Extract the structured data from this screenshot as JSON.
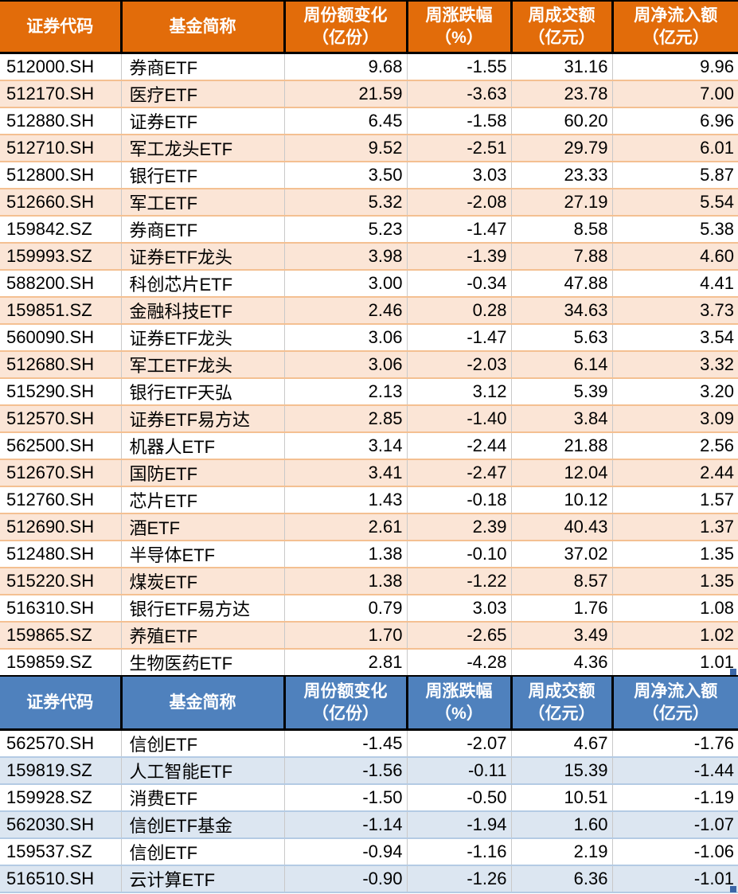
{
  "colors": {
    "inflow_header_bg": "#E26C0A",
    "inflow_stripe_bg": "#FBE5D6",
    "inflow_gridline": "#F4C092",
    "outflow_header_bg": "#4F81BD",
    "outflow_stripe_bg": "#DCE6F1",
    "outflow_gridline": "#B4CBE4",
    "cell_divider": "#C9C9C9",
    "selection_handle": "#3A66A7"
  },
  "columns": [
    {
      "label": "证券代码",
      "sub": ""
    },
    {
      "label": "基金简称",
      "sub": ""
    },
    {
      "label": "周份额变化",
      "sub": "（亿份）"
    },
    {
      "label": "周涨跌幅",
      "sub": "（%）"
    },
    {
      "label": "周成交额",
      "sub": "（亿元）"
    },
    {
      "label": "周净流入额",
      "sub": "（亿元）"
    }
  ],
  "inflow_table": {
    "rows": [
      [
        "512000.SH",
        "券商ETF",
        "9.68",
        "-1.55",
        "31.16",
        "9.96"
      ],
      [
        "512170.SH",
        "医疗ETF",
        "21.59",
        "-3.63",
        "23.78",
        "7.00"
      ],
      [
        "512880.SH",
        "证券ETF",
        "6.45",
        "-1.58",
        "60.20",
        "6.96"
      ],
      [
        "512710.SH",
        "军工龙头ETF",
        "9.52",
        "-2.51",
        "29.79",
        "6.01"
      ],
      [
        "512800.SH",
        "银行ETF",
        "3.50",
        "3.03",
        "23.33",
        "5.87"
      ],
      [
        "512660.SH",
        "军工ETF",
        "5.32",
        "-2.08",
        "27.19",
        "5.54"
      ],
      [
        "159842.SZ",
        "券商ETF",
        "5.23",
        "-1.47",
        "8.58",
        "5.38"
      ],
      [
        "159993.SZ",
        "证券ETF龙头",
        "3.98",
        "-1.39",
        "7.88",
        "4.60"
      ],
      [
        "588200.SH",
        "科创芯片ETF",
        "3.00",
        "-0.34",
        "47.88",
        "4.41"
      ],
      [
        "159851.SZ",
        "金融科技ETF",
        "2.46",
        "0.28",
        "34.63",
        "3.73"
      ],
      [
        "560090.SH",
        "证券ETF龙头",
        "3.06",
        "-1.47",
        "5.63",
        "3.54"
      ],
      [
        "512680.SH",
        "军工ETF龙头",
        "3.06",
        "-2.03",
        "6.14",
        "3.32"
      ],
      [
        "515290.SH",
        "银行ETF天弘",
        "2.13",
        "3.12",
        "5.39",
        "3.20"
      ],
      [
        "512570.SH",
        "证券ETF易方达",
        "2.85",
        "-1.40",
        "3.84",
        "3.09"
      ],
      [
        "562500.SH",
        "机器人ETF",
        "3.14",
        "-2.44",
        "21.88",
        "2.56"
      ],
      [
        "512670.SH",
        "国防ETF",
        "3.41",
        "-2.47",
        "12.04",
        "2.44"
      ],
      [
        "512760.SH",
        "芯片ETF",
        "1.43",
        "-0.18",
        "10.12",
        "1.57"
      ],
      [
        "512690.SH",
        "酒ETF",
        "2.61",
        "2.39",
        "40.43",
        "1.37"
      ],
      [
        "512480.SH",
        "半导体ETF",
        "1.38",
        "-0.10",
        "37.02",
        "1.35"
      ],
      [
        "515220.SH",
        "煤炭ETF",
        "1.38",
        "-1.22",
        "8.57",
        "1.35"
      ],
      [
        "516310.SH",
        "银行ETF易方达",
        "0.79",
        "3.03",
        "1.76",
        "1.08"
      ],
      [
        "159865.SZ",
        "养殖ETF",
        "1.70",
        "-2.65",
        "3.49",
        "1.02"
      ],
      [
        "159859.SZ",
        "生物医药ETF",
        "2.81",
        "-4.28",
        "4.36",
        "1.01"
      ]
    ]
  },
  "outflow_table": {
    "rows": [
      [
        "562570.SH",
        "信创ETF",
        "-1.45",
        "-2.07",
        "4.67",
        "-1.76"
      ],
      [
        "159819.SZ",
        "人工智能ETF",
        "-1.56",
        "-0.11",
        "15.39",
        "-1.44"
      ],
      [
        "159928.SZ",
        "消费ETF",
        "-1.50",
        "-0.50",
        "10.51",
        "-1.19"
      ],
      [
        "562030.SH",
        "信创ETF基金",
        "-1.14",
        "-1.94",
        "1.60",
        "-1.07"
      ],
      [
        "159537.SZ",
        "信创ETF",
        "-0.94",
        "-1.16",
        "2.19",
        "-1.06"
      ],
      [
        "516510.SH",
        "云计算ETF",
        "-0.90",
        "-1.26",
        "6.36",
        "-1.01"
      ]
    ]
  }
}
